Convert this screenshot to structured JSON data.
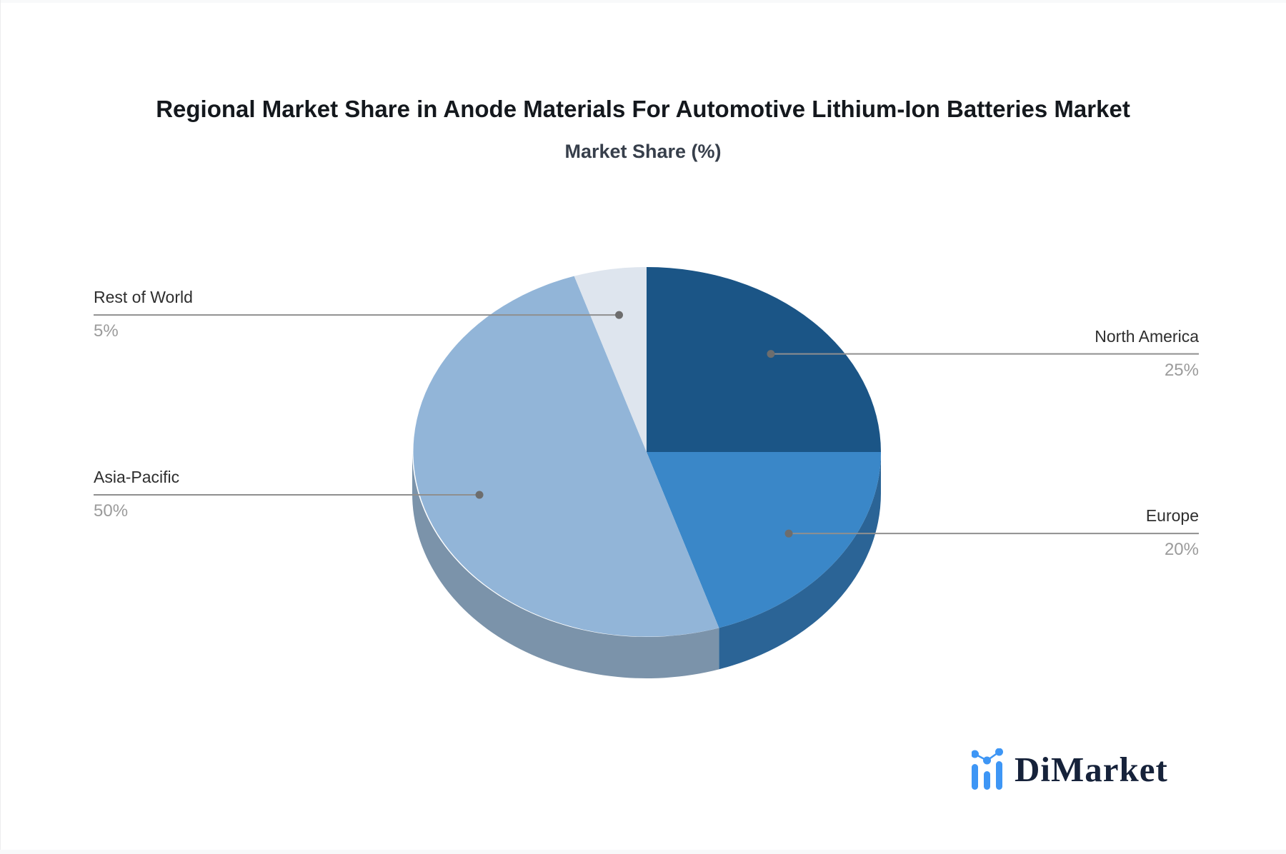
{
  "header": {
    "title": "Regional Market Share in Anode Materials For Automotive Lithium-Ion Batteries Market",
    "subtitle": "Market Share (%)"
  },
  "chart_data": {
    "type": "pie",
    "title": "Regional Market Share in Anode Materials For Automotive Lithium-Ion Batteries Market",
    "subtitle": "Market Share (%)",
    "unit": "%",
    "effect": "3d",
    "start_angle_deg": 0,
    "direction": "clockwise",
    "legend_position": "callout-labels",
    "slices": [
      {
        "label": "North America",
        "value": 25,
        "display": "25%",
        "color": "#1b5586",
        "side_color": "#14415f",
        "callout_side": "right"
      },
      {
        "label": "Europe",
        "value": 20,
        "display": "20%",
        "color": "#3a87c8",
        "side_color": "#2b6496",
        "callout_side": "right"
      },
      {
        "label": "Asia-Pacific",
        "value": 50,
        "display": "50%",
        "color": "#92b5d8",
        "side_color": "#7b93aa",
        "callout_side": "left"
      },
      {
        "label": "Rest of World",
        "value": 5,
        "display": "5%",
        "color": "#dee5ee",
        "side_color": "#b9c3cf",
        "callout_side": "left"
      }
    ]
  },
  "style": {
    "background": "#ffffff",
    "frame": "#f8f9fa",
    "leader_line": "#8f8f8f",
    "leader_dot": "#6d6d6d",
    "label_color": "#2e2e2e",
    "value_color": "#9b9b9b",
    "title_color": "#14181d",
    "subtitle_color": "#373f4b"
  },
  "branding": {
    "logo_text": "DiMarket",
    "icon": "bar-line-chart-icon",
    "icon_color": "#3e96f5",
    "text_color": "#16223a"
  }
}
